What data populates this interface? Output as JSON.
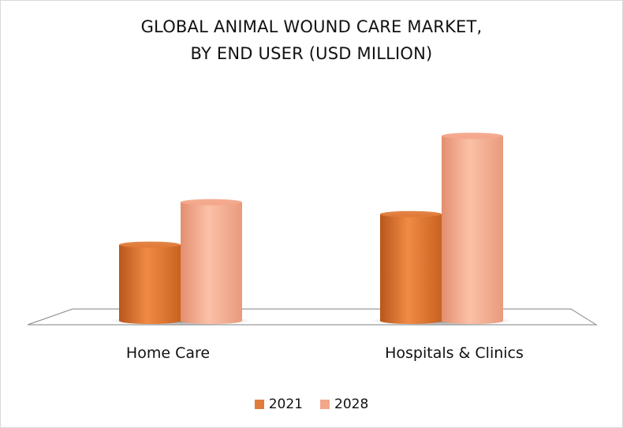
{
  "chart_data": {
    "type": "bar",
    "title": [
      "GLOBAL ANIMAL WOUND CARE MARKET,",
      "BY END USER (USD MILLION)"
    ],
    "categories": [
      "Home Care",
      "Hospitals & Clinics"
    ],
    "series": [
      {
        "name": "2021",
        "color": "#E07B39",
        "values": [
          102,
          143
        ]
      },
      {
        "name": "2028",
        "color": "#F3A68A",
        "values": [
          159,
          248
        ]
      }
    ],
    "ylim": [
      0,
      260
    ],
    "grid": false,
    "legend_position": "bottom",
    "style": "3d-cylinder"
  }
}
